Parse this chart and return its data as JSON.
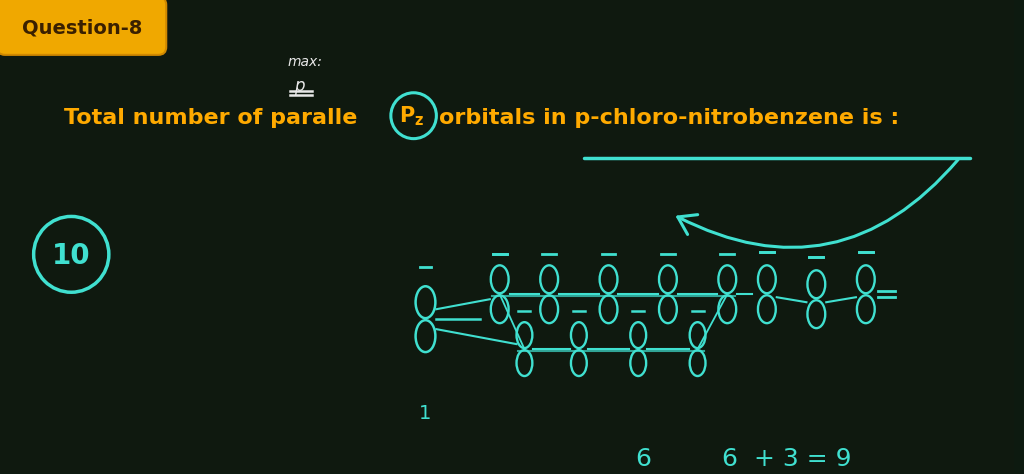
{
  "bg_color": "#0d1a10",
  "bg_color2": "#111808",
  "question_label": "Question-8",
  "question_box_facecolor": "#f0a800",
  "question_text_color": "#3a2000",
  "main_text_color": "#ffaa00",
  "cyan_color": "#40e0d0",
  "white_color": "#e8e8e8",
  "answer_text": "10",
  "equation_bottom": "6  + 3 = 9",
  "fig_width": 10.24,
  "fig_height": 4.74,
  "dpi": 100
}
